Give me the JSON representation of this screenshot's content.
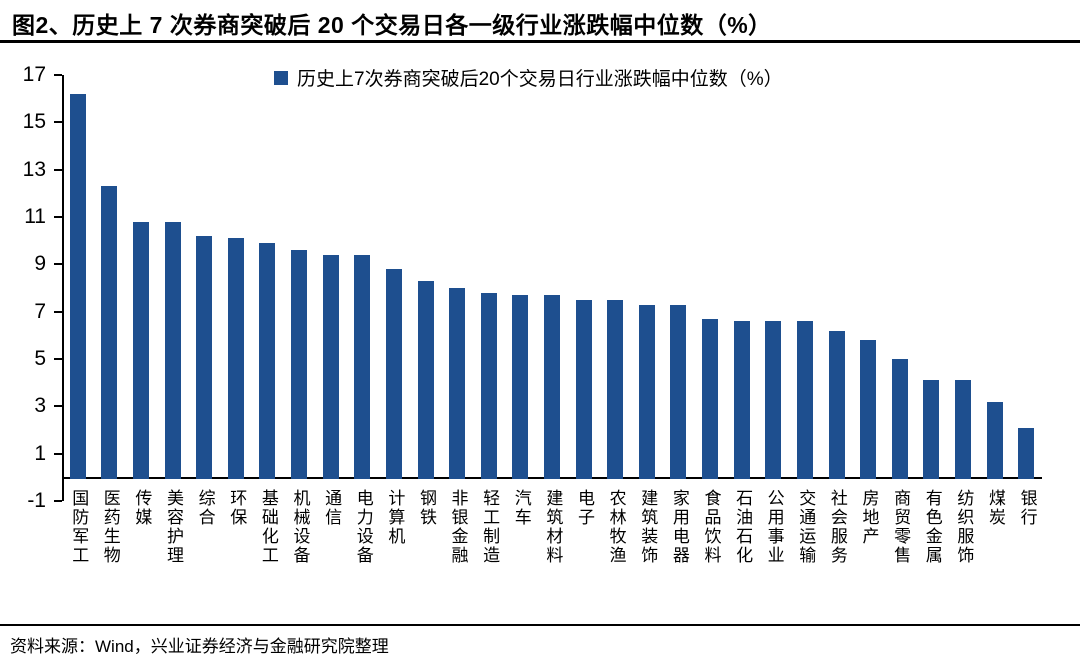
{
  "title": "图2、历史上 7 次券商突破后 20 个交易日各一级行业涨跌幅中位数（%）",
  "legend": {
    "marker": "square",
    "label": "历史上7次券商突破后20个交易日行业涨跌幅中位数（%）"
  },
  "source": "资料来源：Wind，兴业证券经济与金融研究院整理",
  "colors": {
    "bar": "#1E4F8F",
    "axis": "#000000",
    "text": "#000000"
  },
  "chart_data": {
    "type": "bar",
    "title": "历史上7次券商突破后20个交易日行业涨跌幅中位数（%）",
    "xlabel": "",
    "ylabel": "",
    "ylim": [
      -1,
      17
    ],
    "yticks": [
      17,
      15,
      13,
      11,
      9,
      7,
      5,
      3,
      1,
      -1
    ],
    "grid": false,
    "legend_position": "top-center",
    "categories": [
      "国防军工",
      "医药生物",
      "传媒",
      "美容护理",
      "综合",
      "环保",
      "基础化工",
      "机械设备",
      "通信",
      "电力设备",
      "计算机",
      "钢铁",
      "非银金融",
      "轻工制造",
      "汽车",
      "建筑材料",
      "电子",
      "农林牧渔",
      "建筑装饰",
      "家用电器",
      "食品饮料",
      "石油石化",
      "公用事业",
      "交通运输",
      "社会服务",
      "房地产",
      "商贸零售",
      "有色金属",
      "纺织服饰",
      "煤炭",
      "银行"
    ],
    "values": [
      16.2,
      12.3,
      10.8,
      10.8,
      10.2,
      10.1,
      9.9,
      9.6,
      9.4,
      9.4,
      8.8,
      8.3,
      8.0,
      7.8,
      7.7,
      7.7,
      7.5,
      7.5,
      7.3,
      7.3,
      6.7,
      6.6,
      6.6,
      6.6,
      6.2,
      5.8,
      5.0,
      4.1,
      4.1,
      3.2,
      2.1
    ]
  }
}
